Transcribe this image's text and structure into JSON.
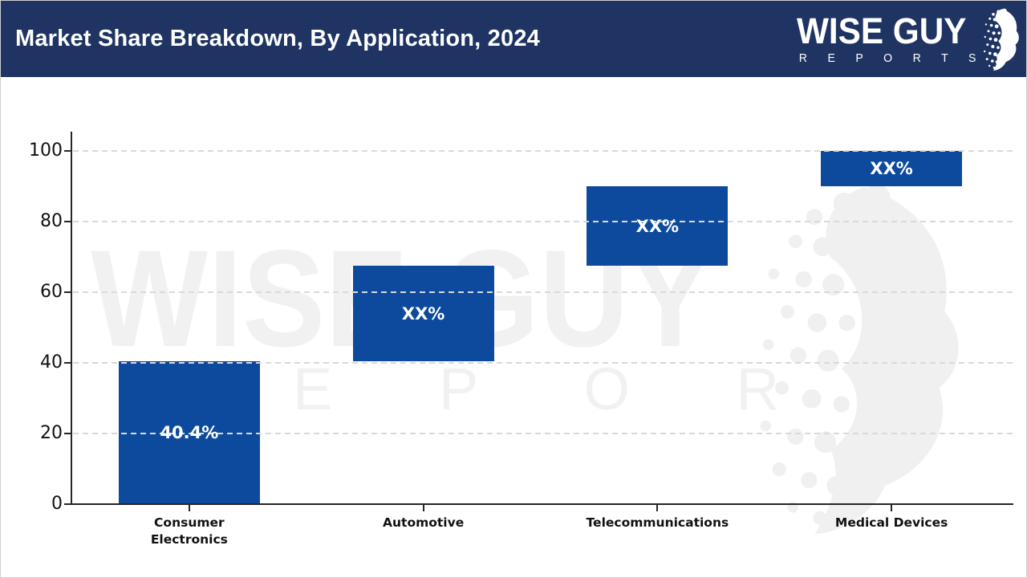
{
  "header": {
    "title": "Market Share Breakdown, By Application, 2024",
    "logo": {
      "line1": "WISE GUY",
      "line2": "R E P O R T S"
    }
  },
  "watermark": {
    "line1": "WISE GUY",
    "line2": "R E P O R T S"
  },
  "chart_data": {
    "type": "bar",
    "subtype": "waterfall-floating-bars",
    "title": "Market Share Breakdown, By Application, 2024",
    "categories": [
      "Consumer\nElectronics",
      "Automotive",
      "Telecommunications",
      "Medical Devices"
    ],
    "segments": [
      {
        "category": "Consumer Electronics",
        "start": 0,
        "end": 40.4,
        "label": "40.4%"
      },
      {
        "category": "Automotive",
        "start": 40.4,
        "end": 67.5,
        "label": "XX%"
      },
      {
        "category": "Telecommunications",
        "start": 67.5,
        "end": 90,
        "label": "XX%"
      },
      {
        "category": "Medical Devices",
        "start": 90,
        "end": 100,
        "label": "XX%"
      }
    ],
    "xlabel": "",
    "ylabel": "",
    "ylim": [
      0,
      100
    ],
    "yticks": [
      0,
      20,
      40,
      60,
      80,
      100
    ],
    "grid": "horizontal-dashed-over-bars",
    "legend": "none",
    "colors": {
      "bar": "#0d4a9e",
      "bar_label": "#ffffff",
      "grid": "#d9d9d9",
      "axis": "#262626",
      "tick_label": "#111111",
      "header_bg": "#1f3462",
      "header_text": "#ffffff",
      "watermark": "#f1f1f1"
    }
  }
}
